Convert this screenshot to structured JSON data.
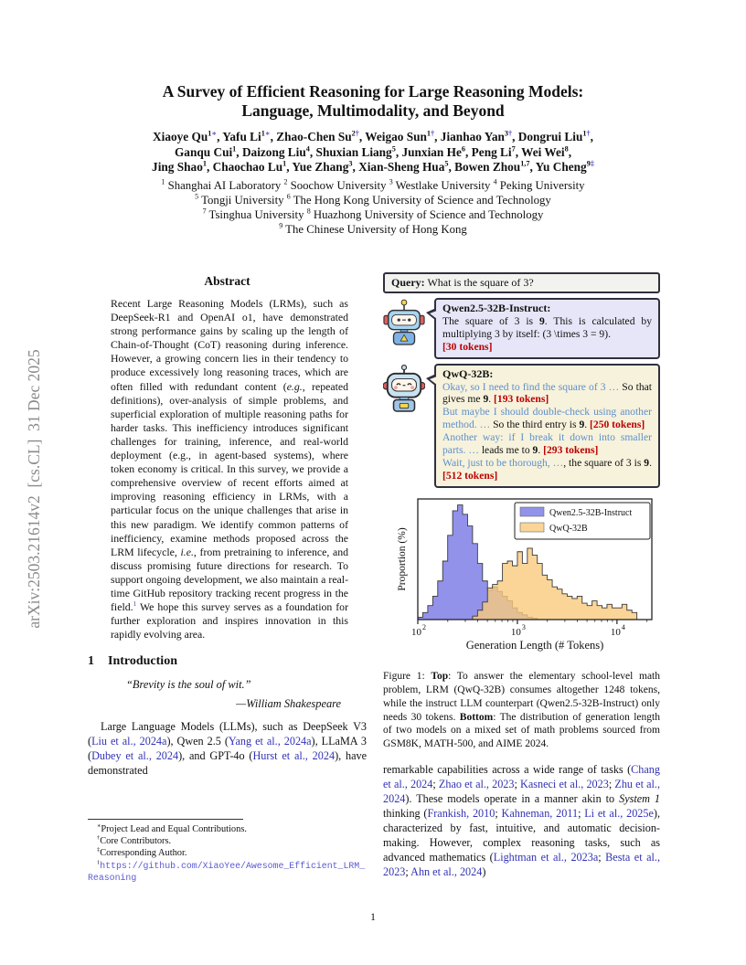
{
  "sidebar": {
    "arxiv": "arXiv:2503.21614v2  [cs.CL]  31 Dec 2025"
  },
  "header": {
    "title": [
      "A Survey of Efficient Reasoning for Large Reasoning Models:",
      "Language, Multimodality, and Beyond"
    ],
    "authors": [
      [
        {
          "t": "Xiaoye Qu"
        },
        {
          "t": "1",
          "s": "sup"
        },
        {
          "t": "∗",
          "s": "supb"
        },
        {
          "t": ", Yafu Li"
        },
        {
          "t": "1",
          "s": "sup"
        },
        {
          "t": "∗",
          "s": "supb"
        },
        {
          "t": ", Zhao-Chen Su"
        },
        {
          "t": "2",
          "s": "sup"
        },
        {
          "t": "†",
          "s": "supb"
        },
        {
          "t": ", Weigao Sun"
        },
        {
          "t": "1",
          "s": "sup"
        },
        {
          "t": "†",
          "s": "supb"
        },
        {
          "t": ", Jianhao Yan"
        },
        {
          "t": "3",
          "s": "sup"
        },
        {
          "t": "†",
          "s": "supb"
        },
        {
          "t": ", Dongrui Liu"
        },
        {
          "t": "1",
          "s": "sup"
        },
        {
          "t": "†",
          "s": "supb"
        },
        {
          "t": ","
        }
      ],
      [
        {
          "t": "Ganqu Cui"
        },
        {
          "t": "1",
          "s": "sup"
        },
        {
          "t": ", Daizong Liu"
        },
        {
          "t": "4",
          "s": "sup"
        },
        {
          "t": ", Shuxian Liang"
        },
        {
          "t": "5",
          "s": "sup"
        },
        {
          "t": ", Junxian He"
        },
        {
          "t": "6",
          "s": "sup"
        },
        {
          "t": ", Peng Li"
        },
        {
          "t": "7",
          "s": "sup"
        },
        {
          "t": ", Wei Wei"
        },
        {
          "t": "8",
          "s": "sup"
        },
        {
          "t": ","
        }
      ],
      [
        {
          "t": "Jing Shao"
        },
        {
          "t": "1",
          "s": "sup"
        },
        {
          "t": ", Chaochao Lu"
        },
        {
          "t": "1",
          "s": "sup"
        },
        {
          "t": ", Yue Zhang"
        },
        {
          "t": "3",
          "s": "sup"
        },
        {
          "t": ", Xian-Sheng Hua"
        },
        {
          "t": "5",
          "s": "sup"
        },
        {
          "t": ", Bowen Zhou"
        },
        {
          "t": "1,7",
          "s": "sup"
        },
        {
          "t": ", Yu Cheng"
        },
        {
          "t": "9",
          "s": "sup"
        },
        {
          "t": "‡",
          "s": "supb"
        }
      ]
    ],
    "affiliations": [
      [
        {
          "t": "1",
          "s": "sup"
        },
        {
          "t": " Shanghai AI Laboratory "
        },
        {
          "t": "2",
          "s": "sup"
        },
        {
          "t": " Soochow University "
        },
        {
          "t": "3",
          "s": "sup"
        },
        {
          "t": " Westlake University "
        },
        {
          "t": "4",
          "s": "sup"
        },
        {
          "t": " Peking University"
        }
      ],
      [
        {
          "t": "5",
          "s": "sup"
        },
        {
          "t": " Tongji University "
        },
        {
          "t": "6",
          "s": "sup"
        },
        {
          "t": " The Hong Kong University of Science and Technology"
        }
      ],
      [
        {
          "t": "7",
          "s": "sup"
        },
        {
          "t": " Tsinghua University "
        },
        {
          "t": "8",
          "s": "sup"
        },
        {
          "t": " Huazhong University of Science and Technology"
        }
      ],
      [
        {
          "t": "9",
          "s": "sup"
        },
        {
          "t": " The Chinese University of Hong Kong"
        }
      ]
    ]
  },
  "abstract": {
    "heading": "Abstract",
    "runs": [
      {
        "t": "Recent Large Reasoning Models (LRMs), such as DeepSeek-R1 and OpenAI o1, have demonstrated strong performance gains by scaling up the length of Chain-of-Thought (CoT) reasoning during inference. However, a growing concern lies in their tendency to produce excessively long reasoning traces, which are often filled with redundant content ("
      },
      {
        "t": "e.g.",
        "s": "i"
      },
      {
        "t": ", repeated definitions), over-analysis of simple problems, and superficial exploration of multiple reasoning paths for harder tasks. This inefficiency introduces significant challenges for training, inference, and real-world deployment (e.g., in agent-based systems), where token economy is critical. In this survey, we provide a comprehensive overview of recent efforts aimed at improving reasoning efficiency in LRMs, with a particular focus on the unique challenges that arise in this new paradigm. We identify common patterns of inefficiency, examine methods proposed across the LRM lifecycle, "
      },
      {
        "t": "i.e.",
        "s": "i"
      },
      {
        "t": ", from pretraining to inference, and discuss promising future directions for research. To support ongoing development, we also maintain a real-time GitHub repository tracking recent progress in the field."
      },
      {
        "t": "1",
        "s": "supb"
      },
      {
        "t": " We hope this survey serves as a foundation for further exploration and inspires innovation in this rapidly evolving area."
      }
    ]
  },
  "intro": {
    "heading_num": "1",
    "heading": "Introduction",
    "quote": "“Brevity is the soul of wit.”",
    "quote_attrib": "—William Shakespeare",
    "p1": [
      {
        "t": "Large Language Models (LLMs), such as DeepSeek V3 ("
      },
      {
        "t": "Liu et al., 2024a",
        "s": "cite"
      },
      {
        "t": "), Qwen 2.5 ("
      },
      {
        "t": "Yang et al., 2024a",
        "s": "cite"
      },
      {
        "t": "), LLaMA 3 ("
      },
      {
        "t": "Dubey et al., 2024",
        "s": "cite"
      },
      {
        "t": "), and GPT-4o ("
      },
      {
        "t": "Hurst et al., 2024",
        "s": "cite"
      },
      {
        "t": "), have demonstrated"
      }
    ]
  },
  "figure1": {
    "query": [
      {
        "t": "Query:",
        "s": "b"
      },
      {
        "t": " What is the square of 3?"
      }
    ],
    "qwen": {
      "title": "Qwen2.5-32B-Instruct:",
      "runs": [
        {
          "t": "The square of 3 is "
        },
        {
          "t": "9",
          "s": "b"
        },
        {
          "t": ". This is calculated by multiplying 3 by itself: (3 \\times 3 = 9)."
        },
        {
          "t": "",
          "s": "br"
        },
        {
          "t": "[30 tokens]",
          "s": "red"
        }
      ]
    },
    "qwq": {
      "title": "QwQ-32B:",
      "runs": [
        {
          "t": "Okay, so I need to find the square of 3 … ",
          "s": "think"
        },
        {
          "t": "So that gives me "
        },
        {
          "t": "9",
          "s": "b"
        },
        {
          "t": ". "
        },
        {
          "t": "[193 tokens]",
          "s": "red"
        },
        {
          "t": "",
          "s": "br"
        },
        {
          "t": "But maybe I should double-check using another method. … ",
          "s": "think"
        },
        {
          "t": "So the third entry is "
        },
        {
          "t": "9",
          "s": "b"
        },
        {
          "t": ". "
        },
        {
          "t": "[250 tokens]",
          "s": "red"
        },
        {
          "t": "",
          "s": "br"
        },
        {
          "t": "Another way: if I break it down into smaller parts. … ",
          "s": "think"
        },
        {
          "t": "leads me to "
        },
        {
          "t": "9",
          "s": "b"
        },
        {
          "t": ". "
        },
        {
          "t": "[293 tokens]",
          "s": "red"
        },
        {
          "t": "",
          "s": "br"
        },
        {
          "t": "Wait, just to be thorough, …",
          "s": "think"
        },
        {
          "t": ", the square of 3 is "
        },
        {
          "t": "9",
          "s": "b"
        },
        {
          "t": ". "
        },
        {
          "t": "[512 tokens]",
          "s": "red"
        }
      ]
    },
    "caption": [
      {
        "t": "Figure 1: "
      },
      {
        "t": "Top",
        "s": "b"
      },
      {
        "t": ": To answer the elementary school-level math problem, LRM (QwQ-32B) consumes altogether 1248 tokens, while the instruct LLM counterpart (Qwen2.5-32B-Instruct) only needs 30 tokens. "
      },
      {
        "t": "Bottom",
        "s": "b"
      },
      {
        "t": ": The distribution of generation length of two models on a mixed set of math problems sourced from GSM8K, MATH-500, and AIME 2024."
      }
    ]
  },
  "chart_data": {
    "type": "histogram",
    "x_scale": "log10",
    "x_range_log10": [
      2.0,
      4.35
    ],
    "xlabel": "Generation Length (# Tokens)",
    "ylabel": "Proportion (%)",
    "x_ticks_log10": [
      2,
      3,
      4
    ],
    "tick_base": "10",
    "legend_position": "top-right",
    "edge_color": "#3a3a3a",
    "series": [
      {
        "name": "Qwen2.5-32B-Instruct",
        "color": "#7f7fe8",
        "opacity": 0.85,
        "start_log10": 2.0,
        "bin_log10": 0.05,
        "values": [
          0.02,
          0.06,
          0.12,
          0.2,
          0.33,
          0.5,
          0.72,
          0.93,
          0.98,
          0.9,
          0.8,
          0.65,
          0.48,
          0.33,
          0.25,
          0.28,
          0.24,
          0.2,
          0.16,
          0.1,
          0.06,
          0.04,
          0.02,
          0.01
        ]
      },
      {
        "name": "QwQ-32B",
        "color": "#f9cb7d",
        "opacity": 0.8,
        "start_log10": 2.55,
        "bin_log10": 0.05,
        "values": [
          0.03,
          0.08,
          0.15,
          0.27,
          0.3,
          0.33,
          0.48,
          0.5,
          0.46,
          0.58,
          0.48,
          0.61,
          0.55,
          0.48,
          0.38,
          0.34,
          0.28,
          0.26,
          0.22,
          0.2,
          0.18,
          0.2,
          0.14,
          0.12,
          0.16,
          0.12,
          0.1,
          0.13,
          0.1,
          0.1,
          0.13,
          0.08,
          0.06
        ]
      }
    ]
  },
  "col2_p1": [
    {
      "t": "remarkable capabilities across a wide range of tasks ("
    },
    {
      "t": "Chang et al., 2024",
      "s": "cite"
    },
    {
      "t": "; "
    },
    {
      "t": "Zhao et al., 2023",
      "s": "cite"
    },
    {
      "t": "; "
    },
    {
      "t": "Kasneci et al., 2023",
      "s": "cite"
    },
    {
      "t": "; "
    },
    {
      "t": "Zhu et al., 2024",
      "s": "cite"
    },
    {
      "t": "). These models operate in a manner akin to "
    },
    {
      "t": "System 1",
      "s": "i"
    },
    {
      "t": " thinking ("
    },
    {
      "t": "Frankish, 2010",
      "s": "cite"
    },
    {
      "t": "; "
    },
    {
      "t": "Kahneman, 2011",
      "s": "cite"
    },
    {
      "t": "; "
    },
    {
      "t": "Li et al., 2025e",
      "s": "cite"
    },
    {
      "t": "), characterized by fast, intuitive, and automatic decision-making. However, complex reasoning tasks, such as advanced mathematics ("
    },
    {
      "t": "Lightman et al., 2023a",
      "s": "cite"
    },
    {
      "t": "; "
    },
    {
      "t": "Besta et al., 2023",
      "s": "cite"
    },
    {
      "t": "; "
    },
    {
      "t": "Ahn et al., 2024",
      "s": "cite"
    },
    {
      "t": ")"
    }
  ],
  "footnotes": [
    [
      {
        "t": "∗",
        "s": "sup"
      },
      {
        "t": "Project Lead and Equal Contributions."
      }
    ],
    [
      {
        "t": "†",
        "s": "sup"
      },
      {
        "t": "Core Contributors."
      }
    ],
    [
      {
        "t": "‡",
        "s": "sup"
      },
      {
        "t": "Corresponding Author."
      }
    ],
    [
      {
        "t": "1",
        "s": "sup"
      },
      {
        "t": "https://github.com/XiaoYee/Awesome_Efficient_LRM_Reasoning",
        "s": "mono"
      }
    ]
  ],
  "page_number": "1"
}
